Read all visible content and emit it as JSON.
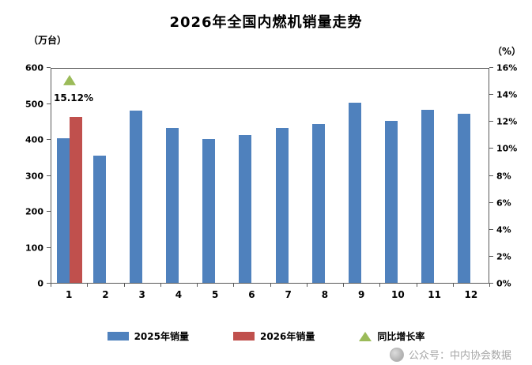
{
  "title": "2026年全国内燃机销量走势",
  "left_axis_unit": "（万台）",
  "right_axis_unit": "（%）",
  "annotation": "15.12%",
  "watermark": "公众号：中内协会数据",
  "colors": {
    "bar_2025": "#4F81BD",
    "bar_2026": "#C0504D",
    "growth": "#9BBB59"
  },
  "legend": [
    {
      "label": "2025年销量",
      "shape": "rect",
      "color": "#4F81BD"
    },
    {
      "label": "2026年销量",
      "shape": "rect",
      "color": "#C0504D"
    },
    {
      "label": "同比增长率",
      "shape": "triangle",
      "color": "#9BBB59"
    }
  ],
  "chart_data": {
    "type": "bar",
    "title": "2026年全国内燃机销量走势",
    "categories": [
      "1",
      "2",
      "3",
      "4",
      "5",
      "6",
      "7",
      "8",
      "9",
      "10",
      "11",
      "12"
    ],
    "series": [
      {
        "name": "2025年销量",
        "key": "sales-2025",
        "axis": "left",
        "color": "#4F81BD",
        "values": [
          405,
          357,
          483,
          433,
          402,
          415,
          435,
          444,
          505,
          453,
          485,
          473
        ]
      },
      {
        "name": "2026年销量",
        "key": "sales-2026",
        "axis": "left",
        "color": "#C0504D",
        "values": [
          466,
          null,
          null,
          null,
          null,
          null,
          null,
          null,
          null,
          null,
          null,
          null
        ]
      },
      {
        "name": "同比增长率",
        "key": "growth-rate",
        "axis": "right",
        "marker": "triangle",
        "color": "#9BBB59",
        "values": [
          15.12,
          null,
          null,
          null,
          null,
          null,
          null,
          null,
          null,
          null,
          null,
          null
        ]
      }
    ],
    "left_ylabel": "（万台）",
    "right_ylabel": "（%）",
    "left_ylim": [
      0,
      600
    ],
    "left_ticks": [
      0,
      100,
      200,
      300,
      400,
      500,
      600
    ],
    "right_ylim": [
      0,
      16
    ],
    "right_ticks": [
      "0%",
      "2%",
      "4%",
      "6%",
      "8%",
      "10%",
      "12%",
      "14%",
      "16%"
    ],
    "grid": false,
    "legend_position": "bottom"
  }
}
